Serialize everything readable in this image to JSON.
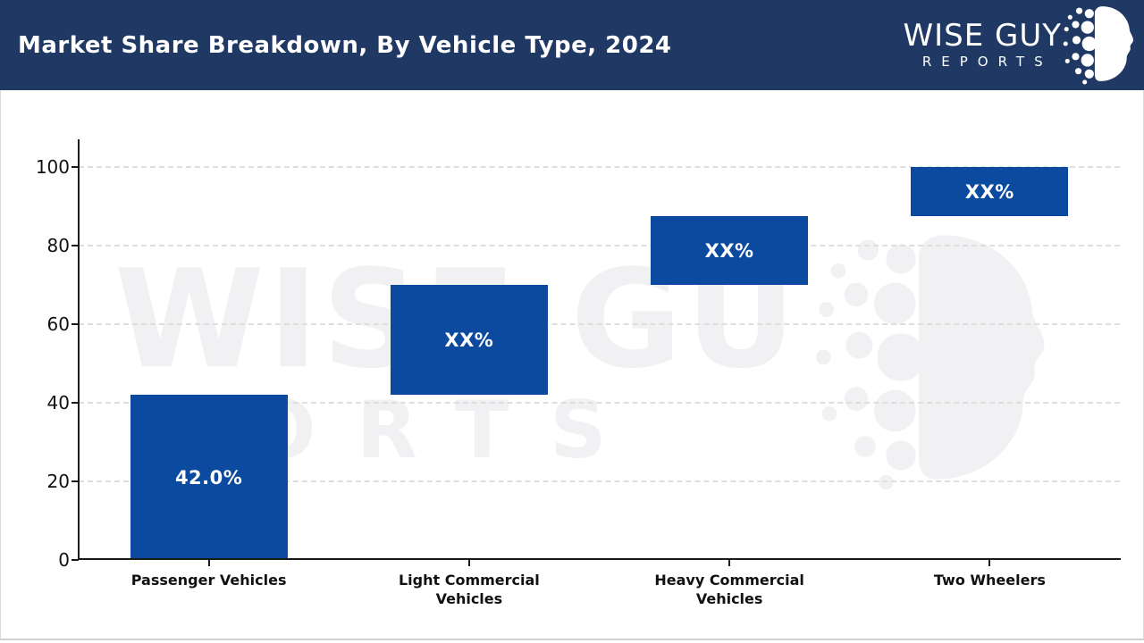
{
  "header": {
    "title": "Market Share Breakdown, By Vehicle Type, 2024",
    "bg_color": "#1f3864",
    "logo": {
      "line1": "WISE GUY",
      "line2": "REPORTS",
      "icon": "dotted-head-profile"
    }
  },
  "watermark": {
    "line1": "WISE GU",
    "line2": "PORTS",
    "icon": "dotted-head-profile"
  },
  "chart_data": {
    "type": "bar",
    "subtype": "waterfall",
    "title": "Market Share Breakdown, By Vehicle Type, 2024",
    "xlabel": "",
    "ylabel": "",
    "categories": [
      "Passenger Vehicles",
      "Light Commercial Vehicles",
      "Heavy Commercial Vehicles",
      "Two Wheelers"
    ],
    "segments": [
      {
        "category": "Passenger Vehicles",
        "label_lines": [
          "Passenger Vehicles"
        ],
        "start": 0,
        "end": 42,
        "displayed_label": "42.0%"
      },
      {
        "category": "Light Commercial Vehicles",
        "label_lines": [
          "Light Commercial",
          "Vehicles"
        ],
        "start": 42,
        "end": 70,
        "displayed_label": "XX%"
      },
      {
        "category": "Heavy Commercial Vehicles",
        "label_lines": [
          "Heavy Commercial",
          "Vehicles"
        ],
        "start": 70,
        "end": 87.5,
        "displayed_label": "XX%"
      },
      {
        "category": "Two Wheelers",
        "label_lines": [
          "Two Wheelers"
        ],
        "start": 87.5,
        "end": 100,
        "displayed_label": "XX%"
      }
    ],
    "yticks": [
      0,
      20,
      40,
      60,
      80,
      100
    ],
    "ylim": [
      0,
      107
    ],
    "bar_color": "#0b4a9f",
    "grid": "horizontal dashed",
    "legend_position": "none"
  }
}
